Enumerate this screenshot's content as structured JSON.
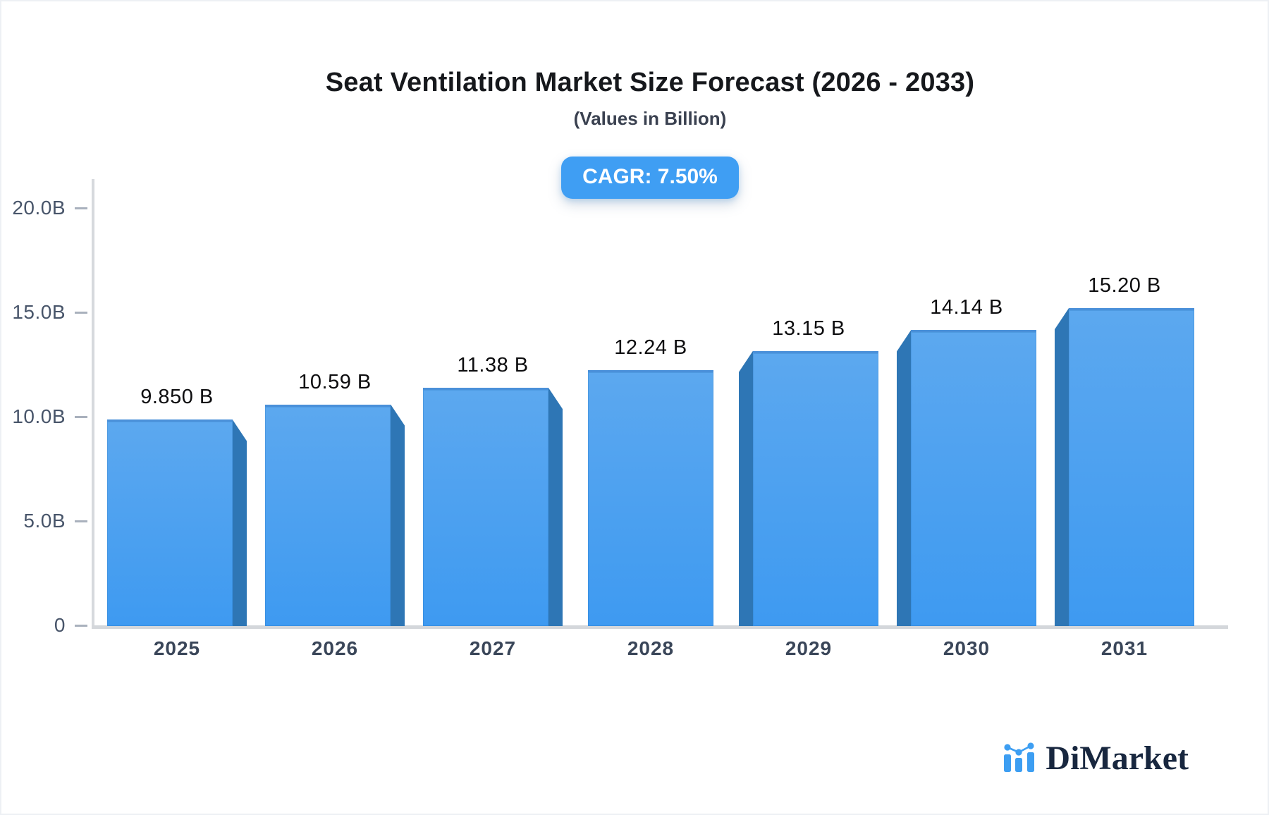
{
  "header": {
    "title": "Seat Ventilation Market Size Forecast (2026 - 2033)",
    "subtitle": "(Values in Billion)",
    "cagr_label": "CAGR: 7.50%"
  },
  "chart_data": {
    "type": "bar",
    "title": "Seat Ventilation Market Size Forecast (2026 - 2033)",
    "subtitle": "(Values in Billion)",
    "categories": [
      "2025",
      "2026",
      "2027",
      "2028",
      "2029",
      "2030",
      "2031"
    ],
    "values": [
      9.85,
      10.59,
      11.38,
      12.24,
      13.15,
      14.14,
      15.2
    ],
    "value_labels": [
      "9.850 B",
      "10.59 B",
      "11.38 B",
      "12.24 B",
      "13.15 B",
      "14.14 B",
      "15.20 B"
    ],
    "xlabel": "",
    "ylabel": "",
    "ylim": [
      0,
      20
    ],
    "y_ticks": [
      {
        "value": 0,
        "label": "0"
      },
      {
        "value": 5,
        "label": "5.0B"
      },
      {
        "value": 10,
        "label": "10.0B"
      },
      {
        "value": 15,
        "label": "15.0B"
      },
      {
        "value": 20,
        "label": "20.0B"
      }
    ],
    "grid": "off",
    "legend": "none",
    "bar_style": "3d-perspective-toward-center"
  },
  "colors": {
    "bar_face_top": "#5ca8ef",
    "bar_face_bottom": "#3e9af1",
    "bar_side": "#2e76b5",
    "badge_background": "#3f9ef3",
    "badge_text": "#ffffff",
    "axis_line": "#d6d9dd",
    "tick_text": "#48556a",
    "logo_blue": "#3d9ef2",
    "logo_text": "#18273f"
  },
  "branding": {
    "name": "DiMarket",
    "icon": "bar-chart-dots-logo-icon"
  }
}
